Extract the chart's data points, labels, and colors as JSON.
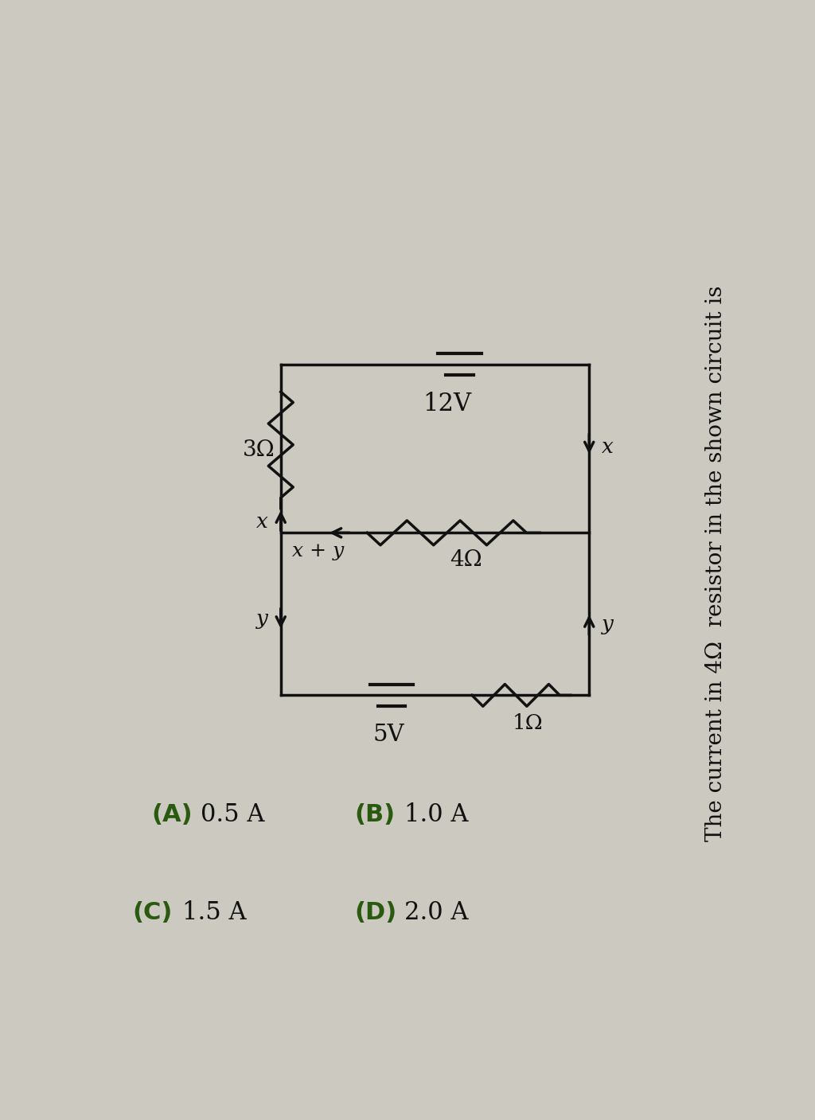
{
  "title": "The current in 4Ω  resistor in the shown circuit is",
  "background_color": "#ccc9c0",
  "text_color": "#111111",
  "circuit_color": "#111111",
  "green_color": "#2a5a10",
  "options_labels": [
    "(A)",
    "(B)",
    "(C)",
    "(D)"
  ],
  "options_values": [
    "0.5 A",
    "1.0 A",
    "1.5 A",
    "2.0 A"
  ],
  "bat12_label": "12V",
  "bat5_label": "5V",
  "r3_label": "3Ω",
  "r4_label": "4Ω",
  "r1_label": "1Ω",
  "curr_x": "x",
  "curr_y": "y",
  "curr_xy": "x + y"
}
